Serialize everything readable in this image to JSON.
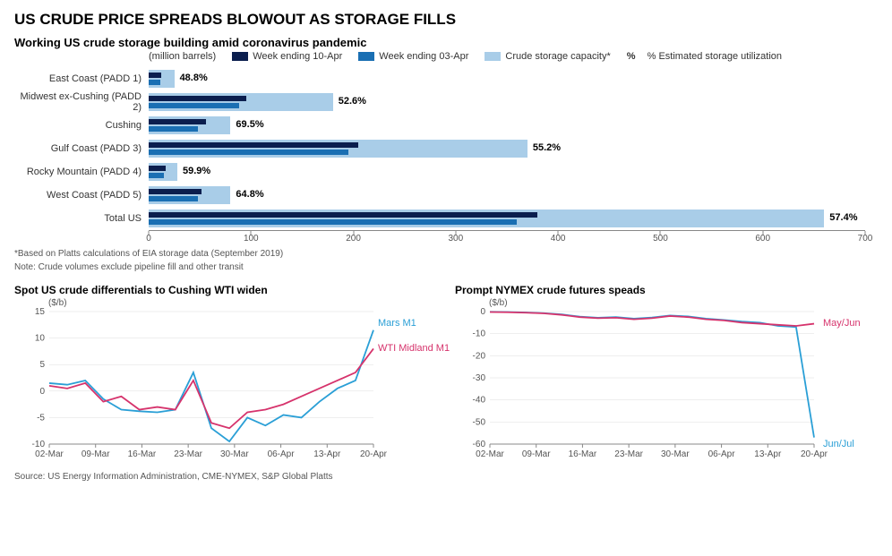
{
  "main_title": "US CRUDE PRICE SPREADS BLOWOUT AS STORAGE FILLS",
  "bar_chart": {
    "title": "Working US crude storage building amid coronavirus pandemic",
    "unit_label": "(million barrels)",
    "legend": {
      "s1": "Week ending 10-Apr",
      "s2": "Week ending 03-Apr",
      "s3": "Crude storage capacity*",
      "s4": "% Estimated storage utilization"
    },
    "colors": {
      "s1": "#0b1e4e",
      "s2": "#1a6fb3",
      "capacity": "#a9cde8",
      "axis": "#888888"
    },
    "xmax": 700,
    "xticks": [
      0,
      100,
      200,
      300,
      400,
      500,
      600,
      700
    ],
    "rows": [
      {
        "label": "East Coast (PADD 1)",
        "capacity": 25,
        "v1": 12,
        "v2": 11,
        "pct": "48.8%"
      },
      {
        "label": "Midwest ex-Cushing (PADD 2)",
        "capacity": 180,
        "v1": 95,
        "v2": 88,
        "pct": "52.6%"
      },
      {
        "label": "Cushing",
        "capacity": 80,
        "v1": 56,
        "v2": 48,
        "pct": "69.5%"
      },
      {
        "label": "Gulf Coast (PADD 3)",
        "capacity": 370,
        "v1": 205,
        "v2": 195,
        "pct": "55.2%"
      },
      {
        "label": "Rocky Mountain (PADD 4)",
        "capacity": 28,
        "v1": 17,
        "v2": 15,
        "pct": "59.9%"
      },
      {
        "label": "West Coast (PADD 5)",
        "capacity": 80,
        "v1": 52,
        "v2": 48,
        "pct": "64.8%"
      },
      {
        "label": "Total US",
        "capacity": 660,
        "v1": 380,
        "v2": 360,
        "pct": "57.4%"
      }
    ],
    "footnote1": "*Based on Platts calculations of EIA storage data (September 2019)",
    "footnote2": "Note: Crude volumes exclude pipeline fill and other transit"
  },
  "line1": {
    "title": "Spot US crude differentials to Cushing WTI widen",
    "unit": "($/b)",
    "ymin": -10,
    "ymax": 15,
    "yticks": [
      -10,
      -5,
      0,
      5,
      10,
      15
    ],
    "xlabels": [
      "02-Mar",
      "09-Mar",
      "16-Mar",
      "23-Mar",
      "30-Mar",
      "06-Apr",
      "13-Apr",
      "20-Apr"
    ],
    "colors": {
      "mars": "#2a9fd6",
      "wti": "#d6336c"
    },
    "series": {
      "mars": {
        "label": "Mars M1",
        "points": [
          1.5,
          1.2,
          2.0,
          -1.5,
          -3.5,
          -3.8,
          -4.0,
          -3.5,
          3.5,
          -7.0,
          -9.5,
          -5.0,
          -6.5,
          -4.5,
          -5.0,
          -2.0,
          0.5,
          2.0,
          11.5
        ]
      },
      "wti": {
        "label": "WTI Midland M1",
        "points": [
          1.0,
          0.5,
          1.5,
          -2.0,
          -1.0,
          -3.5,
          -3.0,
          -3.5,
          2.0,
          -6.0,
          -7.0,
          -4.0,
          -3.5,
          -2.5,
          -1.0,
          0.5,
          2.0,
          3.5,
          8.0
        ]
      }
    }
  },
  "line2": {
    "title": "Prompt NYMEX crude futures speads",
    "unit": "($/b)",
    "ymin": -60,
    "ymax": 0,
    "yticks": [
      -60,
      -50,
      -40,
      -30,
      -20,
      -10,
      0
    ],
    "xlabels": [
      "02-Mar",
      "09-Mar",
      "16-Mar",
      "23-Mar",
      "30-Mar",
      "06-Apr",
      "13-Apr",
      "20-Apr"
    ],
    "colors": {
      "mayjun": "#d6336c",
      "junjul": "#2a9fd6"
    },
    "series": {
      "mayjun": {
        "label": "May/Jun",
        "points": [
          -0.2,
          -0.3,
          -0.5,
          -0.8,
          -1.5,
          -2.5,
          -3.0,
          -2.8,
          -3.5,
          -3.0,
          -2.0,
          -2.5,
          -3.5,
          -4.0,
          -5.0,
          -5.5,
          -6.0,
          -6.5,
          -5.5
        ]
      },
      "junjul": {
        "label": "Jun/Jul",
        "points": [
          -0.1,
          -0.2,
          -0.4,
          -0.7,
          -1.3,
          -2.3,
          -2.8,
          -2.5,
          -3.2,
          -2.7,
          -1.8,
          -2.2,
          -3.2,
          -3.8,
          -4.5,
          -5.0,
          -6.5,
          -7.0,
          -57.0
        ]
      }
    }
  },
  "source": "Source: US Energy Information Administration, CME-NYMEX, S&P Global Platts"
}
